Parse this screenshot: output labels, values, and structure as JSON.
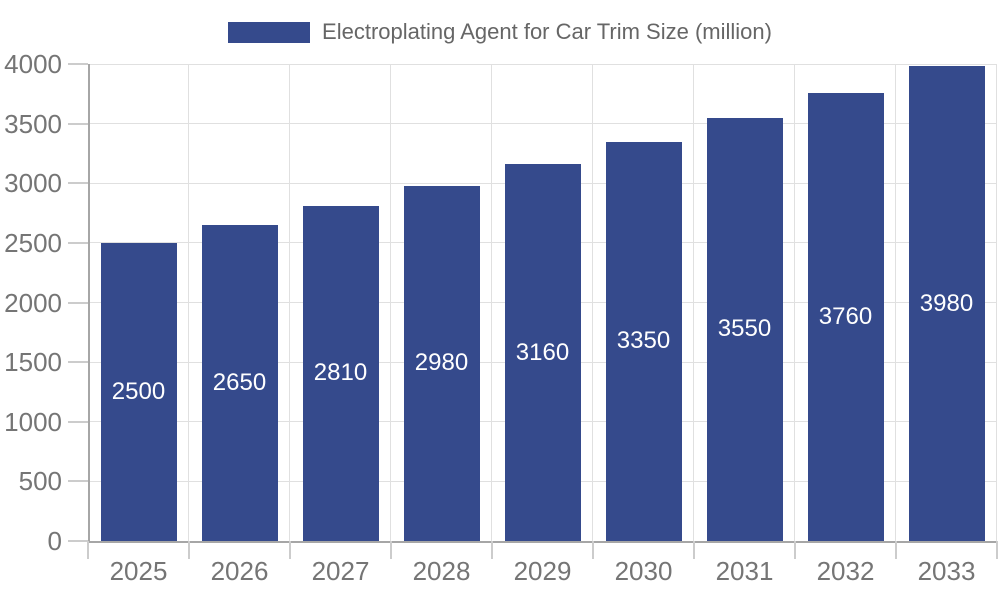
{
  "legend": {
    "label": "Electroplating Agent for Car Trim Size (million)",
    "swatch_color": "#354a8c"
  },
  "chart_data": {
    "type": "bar",
    "title": "Electroplating Agent for Car Trim Size (million)",
    "categories": [
      "2025",
      "2026",
      "2027",
      "2028",
      "2029",
      "2030",
      "2031",
      "2032",
      "2033"
    ],
    "values": [
      2500,
      2650,
      2810,
      2980,
      3160,
      3350,
      3550,
      3760,
      3980
    ],
    "xlabel": "",
    "ylabel": "",
    "ylim": [
      0,
      4000
    ],
    "yticks": [
      0,
      500,
      1000,
      1500,
      2000,
      2500,
      3000,
      3500,
      4000
    ],
    "grid": true,
    "legend_position": "top",
    "bar_color": "#354a8c",
    "bar_label_color": "#ffffff",
    "grid_color": "#e0e0e0",
    "axis_color": "#a6a6a6",
    "tick_color": "#cccccc",
    "tick_label_color": "#757575"
  }
}
